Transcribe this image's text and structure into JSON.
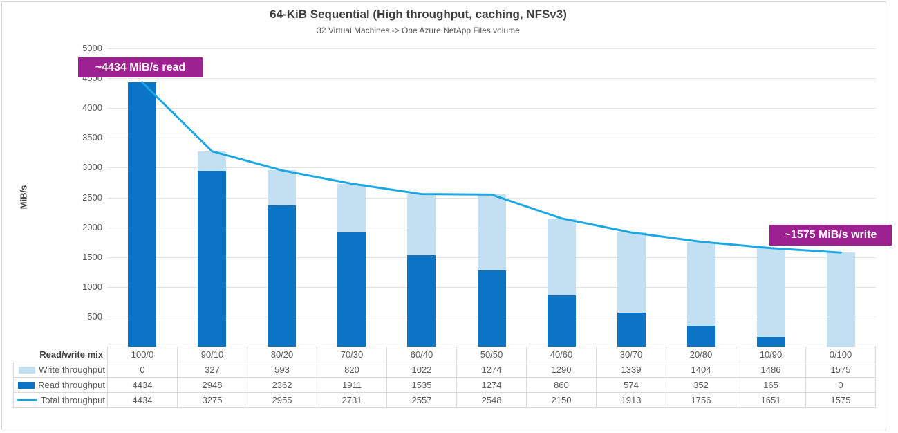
{
  "title": "64-KiB Sequential (High throughput, caching, NFSv3)",
  "subtitle": "32 Virtual Machines -> One Azure NetApp Files volume",
  "y_axis_label": "MiB/s",
  "annotations": {
    "read_callout": "~4434 MiB/s read",
    "write_callout": "~1575 MiB/s write"
  },
  "colors": {
    "callout_bg": "#9e2191",
    "read_bar": "#0b74c4",
    "write_bar": "#c3e0f2",
    "total_line": "#1ca7e3",
    "gridline": "#e3e3e3",
    "table_border": "#d9d9d9",
    "text_dark": "#3f3f3f",
    "text_muted": "#595959"
  },
  "chart_data": {
    "type": "bar",
    "subtype": "stacked-bars-with-line-overlay",
    "title": "64-KiB Sequential (High throughput, caching, NFSv3)",
    "subtitle": "32 Virtual Machines -> One Azure NetApp Files volume",
    "xlabel": "Read/write mix",
    "ylabel": "MiB/s",
    "ylim": [
      0,
      5000
    ],
    "y_ticks": [
      500,
      1000,
      1500,
      2000,
      2500,
      3000,
      3500,
      4000,
      4500,
      5000
    ],
    "grid": true,
    "legend_position": "data-table-left-column",
    "x_header": "Read/write mix",
    "categories": [
      "100/0",
      "90/10",
      "80/20",
      "70/30",
      "60/40",
      "50/50",
      "40/60",
      "30/70",
      "20/80",
      "10/90",
      "0/100"
    ],
    "series": [
      {
        "name": "Write throughput",
        "type": "bar",
        "stack_position": "top",
        "color": "#c3e0f2",
        "values": [
          0,
          327,
          593,
          820,
          1022,
          1274,
          1290,
          1339,
          1404,
          1486,
          1575
        ]
      },
      {
        "name": "Read throughput",
        "type": "bar",
        "stack_position": "bottom",
        "color": "#0b74c4",
        "values": [
          4434,
          2948,
          2362,
          1911,
          1535,
          1274,
          860,
          574,
          352,
          165,
          0
        ]
      },
      {
        "name": "Total throughput",
        "type": "line",
        "color": "#1ca7e3",
        "values": [
          4434,
          3275,
          2955,
          2731,
          2557,
          2548,
          2150,
          1913,
          1756,
          1651,
          1575
        ]
      }
    ]
  }
}
